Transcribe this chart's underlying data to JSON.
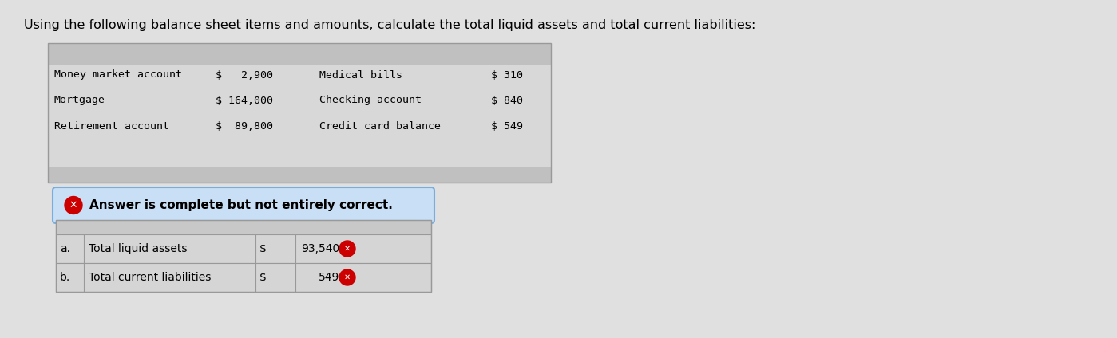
{
  "title": "Using the following balance sheet items and amounts, calculate the total liquid assets and total current liabilities:",
  "page_bg": "#e8e8e8",
  "left_items": [
    [
      "Money market account",
      "$   2,900"
    ],
    [
      "Mortgage",
      "$ 164,000"
    ],
    [
      "Retirement account",
      "$  89,800"
    ]
  ],
  "right_items": [
    [
      "Medical bills",
      "$ 310"
    ],
    [
      "Checking account",
      "$ 840"
    ],
    [
      "Credit card balance",
      "$ 549"
    ]
  ],
  "answer_banner": "Answer is complete but not entirely correct.",
  "table_rows": [
    {
      "label_letter": "a.",
      "label": "Total liquid assets",
      "dollar": "$",
      "value": "93,540"
    },
    {
      "label_letter": "b.",
      "label": "Total current liabilities",
      "dollar": "$",
      "value": "549"
    }
  ],
  "x_icon_color": "#cc0000",
  "font_size_title": 11.5,
  "font_size_body": 9.5,
  "font_size_table": 10,
  "monospace_font": "DejaVu Sans Mono"
}
